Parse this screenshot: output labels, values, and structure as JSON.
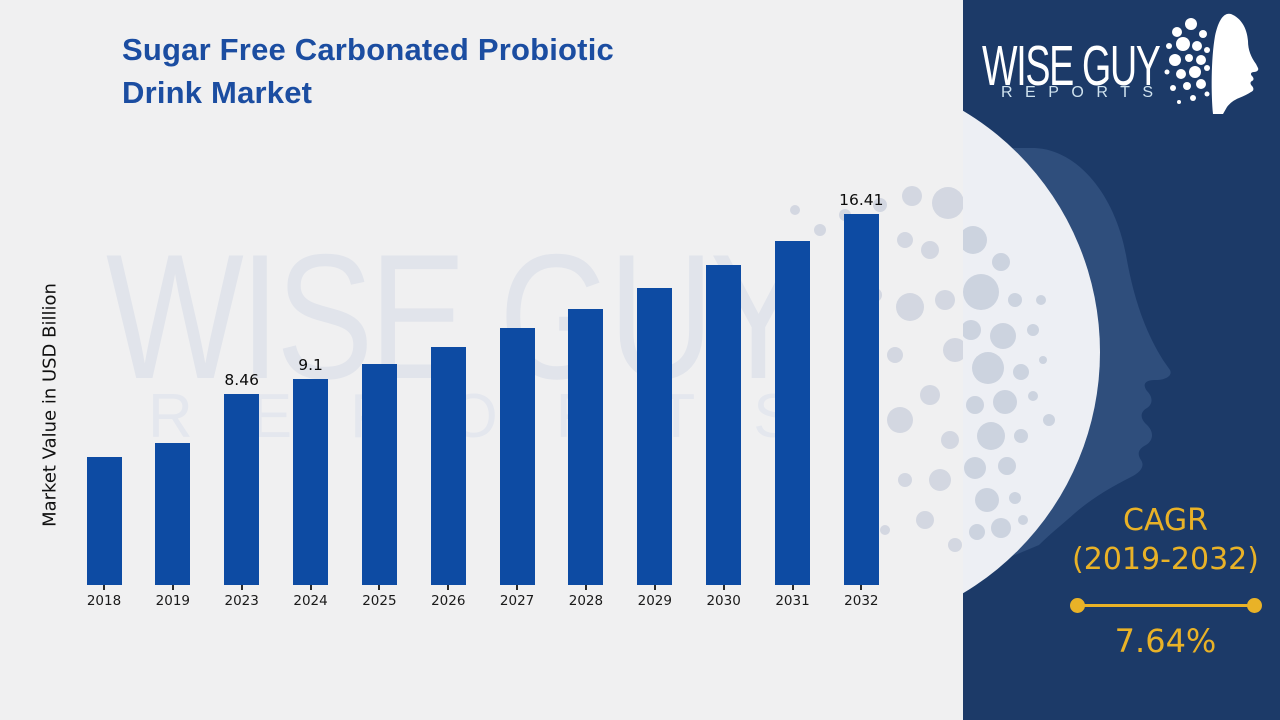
{
  "header": {
    "title_line1": "Sugar Free Carbonated Probiotic",
    "title_line2": "Drink Market"
  },
  "chart": {
    "y_axis_label": "Market Value in USD Billion"
  },
  "watermark": {
    "brand": "WISE GUY",
    "sub": "REPORTS"
  },
  "logo": {
    "brand": "WISE GUY",
    "sub": "REPORTS"
  },
  "cagr": {
    "heading": "CAGR",
    "range": "(2019-2032)",
    "value": "7.64%"
  },
  "colors": {
    "bar": "#0d4ba3",
    "accent_gold": "#e9b227",
    "panel_navy": "#1c3a68",
    "title_blue": "#1b4da1",
    "chart_bg": "#f0f0f1"
  },
  "chart_data": {
    "type": "bar",
    "title": "Sugar Free Carbonated Probiotic Drink Market",
    "xlabel": "",
    "ylabel": "Market Value in USD Billion",
    "categories": [
      "2018",
      "2019",
      "2023",
      "2024",
      "2025",
      "2026",
      "2027",
      "2028",
      "2029",
      "2030",
      "2031",
      "2032"
    ],
    "values": [
      5.65,
      6.3,
      8.46,
      9.1,
      9.79,
      10.54,
      11.35,
      12.21,
      13.15,
      14.15,
      15.23,
      16.41
    ],
    "bar_labels": [
      "",
      "",
      "8.46",
      "9.1",
      "",
      "",
      "",
      "",
      "",
      "",
      "",
      "16.41"
    ],
    "ylim": [
      0,
      17.5
    ],
    "grid": false,
    "legend": null,
    "bar_color": "#0d4ba3"
  }
}
